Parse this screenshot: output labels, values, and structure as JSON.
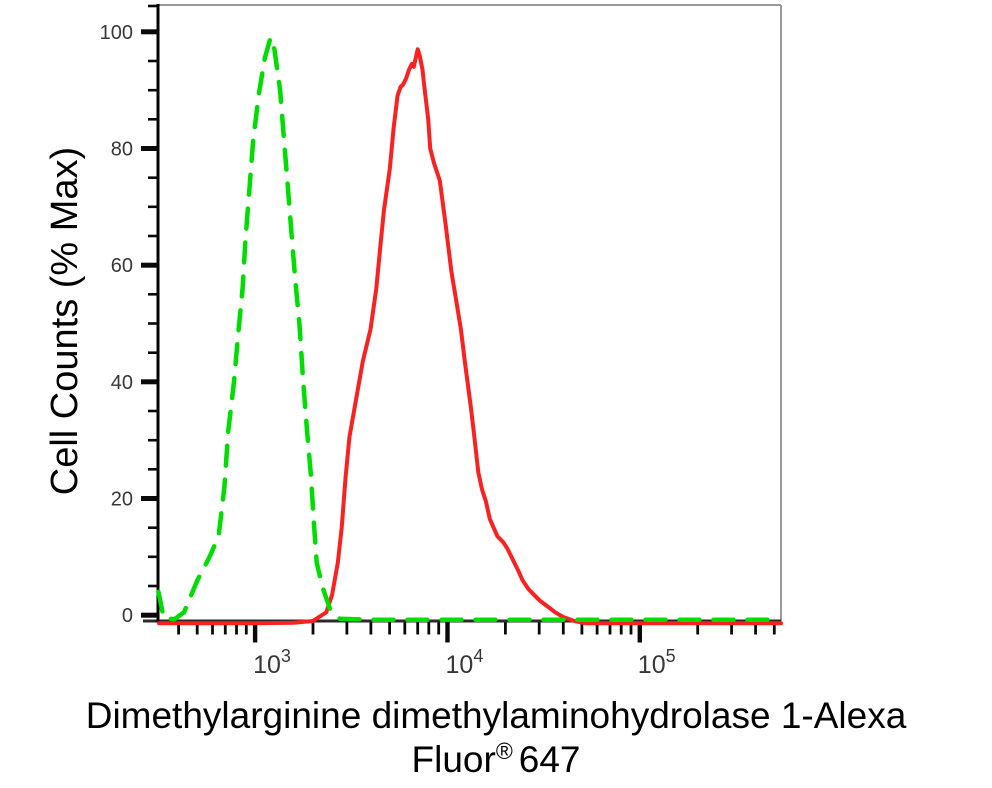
{
  "figure": {
    "background_color": "#ffffff",
    "x_axis_title_line1": "Dimethylarginine dimethylaminohydrolase 1-Alexa",
    "x_axis_title_line2_word": "Fluor",
    "x_axis_title_reg_mark": "®",
    "x_axis_title_line2_number": "647"
  },
  "chart_data": {
    "type": "line",
    "subtype": "flow-cytometry-histogram-overlay",
    "title": "",
    "xlabel": "Dimethylarginine dimethylaminohydrolase 1-Alexa Fluor® 647",
    "ylabel": "Cell Counts (% Max)",
    "grid": false,
    "legend_position": "none",
    "x_scale": "log10",
    "x_domain_log10": [
      2.495,
      5.734
    ],
    "ylim": [
      -1.0,
      104.6
    ],
    "y_ticks_major": [
      0,
      20,
      40,
      60,
      80,
      100
    ],
    "y_tick_minor_step": 5,
    "x_tick_label_base": "10",
    "x_decade_ticks": [
      3,
      4,
      5
    ],
    "x_minor_tick_decades": [
      2,
      3,
      4,
      5
    ],
    "axis_color": "#000000",
    "frame_color": "#9a9a9a",
    "tick_label_color": "#383838",
    "series": [
      {
        "name": "red-solid-stained",
        "color": "#fa2121",
        "line_style": "solid",
        "stroke_width": 4,
        "points_log10x_percent": [
          [
            2.5,
            -1.4
          ],
          [
            2.8,
            -1.4
          ],
          [
            3.0,
            -1.4
          ],
          [
            3.2,
            -1.3
          ],
          [
            3.3,
            -1.0
          ],
          [
            3.37,
            0.5
          ],
          [
            3.4,
            3.5
          ],
          [
            3.43,
            9.0
          ],
          [
            3.45,
            15.0
          ],
          [
            3.47,
            23.5
          ],
          [
            3.49,
            30.5
          ],
          [
            3.53,
            38.0
          ],
          [
            3.56,
            43.5
          ],
          [
            3.6,
            49.0
          ],
          [
            3.63,
            56.0
          ],
          [
            3.65,
            63.0
          ],
          [
            3.67,
            69.5
          ],
          [
            3.7,
            76.5
          ],
          [
            3.72,
            83.5
          ],
          [
            3.74,
            89.0
          ],
          [
            3.755,
            90.5
          ],
          [
            3.77,
            91.0
          ],
          [
            3.785,
            92.0
          ],
          [
            3.8,
            93.5
          ],
          [
            3.815,
            94.5
          ],
          [
            3.825,
            94.0
          ],
          [
            3.835,
            95.5
          ],
          [
            3.845,
            97.0
          ],
          [
            3.855,
            96.0
          ],
          [
            3.87,
            93.5
          ],
          [
            3.88,
            90.5
          ],
          [
            3.9,
            85.0
          ],
          [
            3.91,
            80.0
          ],
          [
            3.93,
            77.5
          ],
          [
            3.96,
            74.5
          ],
          [
            3.99,
            67.0
          ],
          [
            4.02,
            59.0
          ],
          [
            4.05,
            53.0
          ],
          [
            4.07,
            49.0
          ],
          [
            4.09,
            43.5
          ],
          [
            4.12,
            36.0
          ],
          [
            4.14,
            30.5
          ],
          [
            4.16,
            24.5
          ],
          [
            4.18,
            21.5
          ],
          [
            4.2,
            19.5
          ],
          [
            4.22,
            16.5
          ],
          [
            4.26,
            13.5
          ],
          [
            4.29,
            12.5
          ],
          [
            4.31,
            11.5
          ],
          [
            4.34,
            9.5
          ],
          [
            4.37,
            7.5
          ],
          [
            4.39,
            6.0
          ],
          [
            4.42,
            4.5
          ],
          [
            4.45,
            3.5
          ],
          [
            4.48,
            2.5
          ],
          [
            4.52,
            1.5
          ],
          [
            4.56,
            0.5
          ],
          [
            4.6,
            -0.3
          ],
          [
            4.66,
            -1.0
          ],
          [
            4.72,
            -1.4
          ],
          [
            5.0,
            -1.4
          ],
          [
            5.3,
            -1.4
          ],
          [
            5.6,
            -1.4
          ],
          [
            5.734,
            -1.4
          ]
        ]
      },
      {
        "name": "green-dashed-control",
        "color": "#00dd00",
        "line_style": "dashed",
        "stroke_width": 4.5,
        "points_log10x_percent": [
          [
            2.497,
            4.0
          ],
          [
            2.525,
            -0.5
          ],
          [
            2.58,
            -0.7
          ],
          [
            2.63,
            0.5
          ],
          [
            2.7,
            6.0
          ],
          [
            2.76,
            9.8
          ],
          [
            2.81,
            13.5
          ],
          [
            2.84,
            22.0
          ],
          [
            2.86,
            31.5
          ],
          [
            2.89,
            40.0
          ],
          [
            2.91,
            47.5
          ],
          [
            2.935,
            56.0
          ],
          [
            2.95,
            64.5
          ],
          [
            2.97,
            73.0
          ],
          [
            2.99,
            81.5
          ],
          [
            3.02,
            89.5
          ],
          [
            3.05,
            95.5
          ],
          [
            3.08,
            99.0
          ],
          [
            3.1,
            97.0
          ],
          [
            3.13,
            90.0
          ],
          [
            3.15,
            81.5
          ],
          [
            3.17,
            73.5
          ],
          [
            3.19,
            65.0
          ],
          [
            3.21,
            57.0
          ],
          [
            3.23,
            50.0
          ],
          [
            3.25,
            40.0
          ],
          [
            3.27,
            31.5
          ],
          [
            3.29,
            24.0
          ],
          [
            3.305,
            16.0
          ],
          [
            3.32,
            9.0
          ],
          [
            3.35,
            4.8
          ],
          [
            3.39,
            1.0
          ],
          [
            3.44,
            -0.6
          ],
          [
            3.6,
            -0.8
          ],
          [
            3.8,
            -0.8
          ],
          [
            4.0,
            -0.8
          ],
          [
            4.2,
            -0.8
          ],
          [
            4.4,
            -0.8
          ],
          [
            4.6,
            -0.8
          ],
          [
            4.8,
            -0.8
          ],
          [
            5.0,
            -0.8
          ],
          [
            5.2,
            -0.8
          ],
          [
            5.4,
            -0.8
          ],
          [
            5.6,
            -0.8
          ],
          [
            5.734,
            -0.8
          ]
        ]
      }
    ]
  }
}
